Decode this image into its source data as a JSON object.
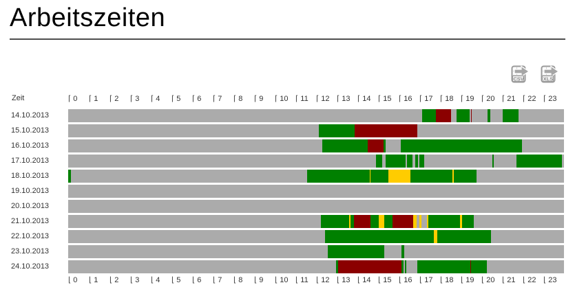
{
  "title": "Arbeitszeiten",
  "toolbar": {
    "csv": "CSV",
    "xls": "XLS"
  },
  "axis": {
    "label": "Zeit",
    "top_tick": "⌈",
    "bottom_tick": "⌊",
    "hours": [
      "0",
      "1",
      "2",
      "3",
      "4",
      "5",
      "6",
      "7",
      "8",
      "9",
      "10",
      "11",
      "12",
      "13",
      "14",
      "15",
      "16",
      "17",
      "18",
      "19",
      "20",
      "21",
      "22",
      "23"
    ]
  },
  "colors": {
    "track": "#ABABAB",
    "green": "#008000",
    "red": "#8B0000",
    "yellow": "#FFCC00",
    "icon": "#9A9A9A"
  },
  "chart_data": {
    "type": "timeline",
    "title": "Arbeitszeiten",
    "x_unit": "hour",
    "x_range": [
      0,
      24
    ],
    "legend": "none",
    "rows": [
      {
        "date": "14.10.2013",
        "segments": [
          [
            17.12,
            17.79,
            "green"
          ],
          [
            17.79,
            18.53,
            "red"
          ],
          [
            18.79,
            19.42,
            "green"
          ],
          [
            19.5,
            19.53,
            "red"
          ],
          [
            20.31,
            20.42,
            "green"
          ],
          [
            21.03,
            21.81,
            "green"
          ]
        ]
      },
      {
        "date": "15.10.2013",
        "segments": [
          [
            12.14,
            13.87,
            "green"
          ],
          [
            13.87,
            16.89,
            "red"
          ]
        ]
      },
      {
        "date": "16.10.2013",
        "segments": [
          [
            12.31,
            14.51,
            "green"
          ],
          [
            14.51,
            15.26,
            "red"
          ],
          [
            15.28,
            15.37,
            "green"
          ],
          [
            16.09,
            21.98,
            "green"
          ]
        ]
      },
      {
        "date": "17.10.2013",
        "segments": [
          [
            14.9,
            15.2,
            "green"
          ],
          [
            15.37,
            16.33,
            "green"
          ],
          [
            16.4,
            16.67,
            "green"
          ],
          [
            16.79,
            16.92,
            "green"
          ],
          [
            17.0,
            17.22,
            "green"
          ],
          [
            20.53,
            20.6,
            "green"
          ],
          [
            21.7,
            23.9,
            "green"
          ]
        ]
      },
      {
        "date": "18.10.2013",
        "segments": [
          [
            0.0,
            0.14,
            "green"
          ],
          [
            11.57,
            14.59,
            "green"
          ],
          [
            14.59,
            14.64,
            "yellow"
          ],
          [
            14.64,
            15.51,
            "green"
          ],
          [
            15.51,
            16.56,
            "yellow"
          ],
          [
            16.56,
            18.59,
            "green"
          ],
          [
            18.59,
            18.67,
            "yellow"
          ],
          [
            18.67,
            19.76,
            "green"
          ]
        ]
      },
      {
        "date": "19.10.2013",
        "segments": []
      },
      {
        "date": "20.10.2013",
        "segments": []
      },
      {
        "date": "21.10.2013",
        "segments": [
          [
            12.23,
            13.59,
            "green"
          ],
          [
            13.59,
            13.68,
            "yellow"
          ],
          [
            13.68,
            13.83,
            "green"
          ],
          [
            13.83,
            14.64,
            "red"
          ],
          [
            14.64,
            15.03,
            "green"
          ],
          [
            15.03,
            15.31,
            "yellow"
          ],
          [
            15.31,
            15.7,
            "green"
          ],
          [
            15.7,
            16.7,
            "red"
          ],
          [
            16.7,
            16.88,
            "yellow"
          ],
          [
            17.0,
            17.1,
            "yellow"
          ],
          [
            17.37,
            17.44,
            "yellow"
          ],
          [
            17.44,
            18.98,
            "green"
          ],
          [
            18.98,
            19.07,
            "yellow"
          ],
          [
            19.07,
            19.63,
            "green"
          ]
        ]
      },
      {
        "date": "22.10.2013",
        "segments": [
          [
            12.44,
            17.7,
            "green"
          ],
          [
            17.7,
            17.87,
            "yellow"
          ],
          [
            17.87,
            20.48,
            "green"
          ]
        ]
      },
      {
        "date": "23.10.2013",
        "segments": [
          [
            12.56,
            15.31,
            "green"
          ],
          [
            16.12,
            16.26,
            "green"
          ]
        ]
      },
      {
        "date": "24.10.2013",
        "segments": [
          [
            12.96,
            13.06,
            "green"
          ],
          [
            13.06,
            16.12,
            "red"
          ],
          [
            16.12,
            16.22,
            "green"
          ],
          [
            16.29,
            16.37,
            "green"
          ],
          [
            16.89,
            19.46,
            "green"
          ],
          [
            19.46,
            19.51,
            "red"
          ],
          [
            19.51,
            20.26,
            "green"
          ]
        ]
      }
    ]
  }
}
